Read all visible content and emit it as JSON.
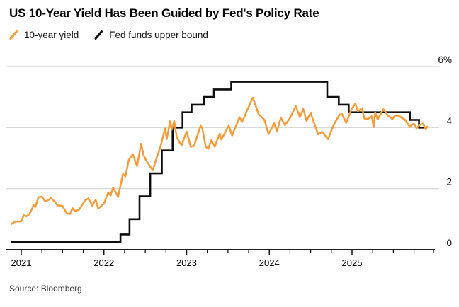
{
  "chart_data": {
    "type": "line",
    "title": "US 10-Year Yield Has Been Guided by Fed's Policy Rate",
    "source": "Source: Bloomberg",
    "unit": "%",
    "ylim": [
      0,
      6
    ],
    "x_range": [
      2020.88,
      2025.91
    ],
    "grid": "horizontal-gridlines-at-2-4-6",
    "legend_position": "top-left",
    "colors": {
      "yield_line": "#F79B38",
      "fed_funds_line": "#0d0d0d",
      "gridline": "#d8d8d8",
      "axis": "#000000"
    },
    "y_ticks": [
      {
        "label": "6%",
        "value": 6
      },
      {
        "label": "4",
        "value": 4
      },
      {
        "label": "2",
        "value": 2
      },
      {
        "label": "0",
        "value": 0
      }
    ],
    "x_ticks": [
      {
        "label": "2021",
        "value": 2021
      },
      {
        "label": "2022",
        "value": 2022
      },
      {
        "label": "2023",
        "value": 2023
      },
      {
        "label": "2024",
        "value": 2024
      },
      {
        "label": "2025",
        "value": 2025
      }
    ],
    "minor_x_tick_interval_years": 0.25,
    "series": [
      {
        "name": "10-year yield",
        "color": "#F79B38",
        "style": "line",
        "points": [
          [
            2020.88,
            0.84
          ],
          [
            2020.93,
            0.93
          ],
          [
            2020.97,
            0.92
          ],
          [
            2021.0,
            0.93
          ],
          [
            2021.03,
            1.13
          ],
          [
            2021.06,
            1.09
          ],
          [
            2021.1,
            1.17
          ],
          [
            2021.13,
            1.34
          ],
          [
            2021.15,
            1.46
          ],
          [
            2021.17,
            1.4
          ],
          [
            2021.21,
            1.72
          ],
          [
            2021.25,
            1.74
          ],
          [
            2021.29,
            1.58
          ],
          [
            2021.33,
            1.63
          ],
          [
            2021.36,
            1.69
          ],
          [
            2021.41,
            1.56
          ],
          [
            2021.44,
            1.45
          ],
          [
            2021.5,
            1.43
          ],
          [
            2021.55,
            1.19
          ],
          [
            2021.59,
            1.17
          ],
          [
            2021.62,
            1.36
          ],
          [
            2021.65,
            1.26
          ],
          [
            2021.7,
            1.31
          ],
          [
            2021.74,
            1.48
          ],
          [
            2021.77,
            1.61
          ],
          [
            2021.81,
            1.68
          ],
          [
            2021.84,
            1.55
          ],
          [
            2021.86,
            1.44
          ],
          [
            2021.9,
            1.64
          ],
          [
            2021.93,
            1.35
          ],
          [
            2021.96,
            1.41
          ],
          [
            2022.0,
            1.51
          ],
          [
            2022.05,
            1.87
          ],
          [
            2022.08,
            1.78
          ],
          [
            2022.11,
            2.03
          ],
          [
            2022.15,
            1.85
          ],
          [
            2022.17,
            1.72
          ],
          [
            2022.23,
            2.48
          ],
          [
            2022.26,
            2.4
          ],
          [
            2022.3,
            2.94
          ],
          [
            2022.35,
            3.13
          ],
          [
            2022.4,
            2.74
          ],
          [
            2022.45,
            3.47
          ],
          [
            2022.48,
            3.09
          ],
          [
            2022.51,
            2.93
          ],
          [
            2022.57,
            2.68
          ],
          [
            2022.59,
            2.6
          ],
          [
            2022.64,
            3.03
          ],
          [
            2022.68,
            3.33
          ],
          [
            2022.74,
            3.97
          ],
          [
            2022.76,
            3.62
          ],
          [
            2022.8,
            4.21
          ],
          [
            2022.82,
            3.93
          ],
          [
            2022.85,
            4.21
          ],
          [
            2022.88,
            3.69
          ],
          [
            2022.92,
            3.49
          ],
          [
            2022.94,
            3.42
          ],
          [
            2023.0,
            3.87
          ],
          [
            2023.05,
            3.37
          ],
          [
            2023.09,
            3.4
          ],
          [
            2023.17,
            4.06
          ],
          [
            2023.19,
            3.97
          ],
          [
            2023.23,
            3.38
          ],
          [
            2023.26,
            3.3
          ],
          [
            2023.3,
            3.59
          ],
          [
            2023.34,
            3.37
          ],
          [
            2023.4,
            3.8
          ],
          [
            2023.42,
            3.61
          ],
          [
            2023.51,
            4.06
          ],
          [
            2023.55,
            3.74
          ],
          [
            2023.64,
            4.34
          ],
          [
            2023.67,
            4.18
          ],
          [
            2023.74,
            4.61
          ],
          [
            2023.8,
            4.98
          ],
          [
            2023.82,
            4.84
          ],
          [
            2023.87,
            4.44
          ],
          [
            2023.94,
            4.26
          ],
          [
            2023.99,
            3.79
          ],
          [
            2024.06,
            4.14
          ],
          [
            2024.09,
            3.87
          ],
          [
            2024.14,
            4.32
          ],
          [
            2024.19,
            4.08
          ],
          [
            2024.25,
            4.31
          ],
          [
            2024.32,
            4.7
          ],
          [
            2024.37,
            4.34
          ],
          [
            2024.41,
            4.61
          ],
          [
            2024.45,
            4.22
          ],
          [
            2024.5,
            4.48
          ],
          [
            2024.54,
            4.16
          ],
          [
            2024.59,
            3.78
          ],
          [
            2024.64,
            3.86
          ],
          [
            2024.71,
            3.62
          ],
          [
            2024.77,
            4.03
          ],
          [
            2024.81,
            4.24
          ],
          [
            2024.85,
            4.43
          ],
          [
            2024.88,
            4.44
          ],
          [
            2024.93,
            4.15
          ],
          [
            2024.99,
            4.58
          ],
          [
            2025.04,
            4.79
          ],
          [
            2025.07,
            4.53
          ],
          [
            2025.12,
            4.63
          ],
          [
            2025.15,
            4.3
          ],
          [
            2025.19,
            4.28
          ],
          [
            2025.24,
            4.37
          ],
          [
            2025.26,
            4.01
          ],
          [
            2025.28,
            4.49
          ],
          [
            2025.31,
            4.27
          ],
          [
            2025.38,
            4.6
          ],
          [
            2025.43,
            4.4
          ],
          [
            2025.49,
            4.28
          ],
          [
            2025.52,
            4.4
          ],
          [
            2025.56,
            4.39
          ],
          [
            2025.64,
            4.26
          ],
          [
            2025.7,
            4.02
          ],
          [
            2025.72,
            4.09
          ],
          [
            2025.75,
            4.12
          ],
          [
            2025.78,
            3.98
          ],
          [
            2025.82,
            4.09
          ],
          [
            2025.86,
            4.13
          ],
          [
            2025.89,
            3.94
          ],
          [
            2025.91,
            4.03
          ]
        ]
      },
      {
        "name": "Fed funds upper bound",
        "color": "#0d0d0d",
        "style": "step",
        "end_t": 2025.91,
        "points": [
          [
            2020.88,
            0.25
          ],
          [
            2022.2,
            0.5
          ],
          [
            2022.31,
            1.0
          ],
          [
            2022.43,
            1.75
          ],
          [
            2022.56,
            2.5
          ],
          [
            2022.7,
            3.25
          ],
          [
            2022.83,
            4.0
          ],
          [
            2022.95,
            4.5
          ],
          [
            2023.06,
            4.75
          ],
          [
            2023.21,
            5.0
          ],
          [
            2023.33,
            5.25
          ],
          [
            2023.54,
            5.5
          ],
          [
            2024.7,
            5.0
          ],
          [
            2024.84,
            4.75
          ],
          [
            2024.96,
            4.5
          ],
          [
            2025.7,
            4.25
          ],
          [
            2025.81,
            4.0
          ]
        ]
      }
    ]
  }
}
